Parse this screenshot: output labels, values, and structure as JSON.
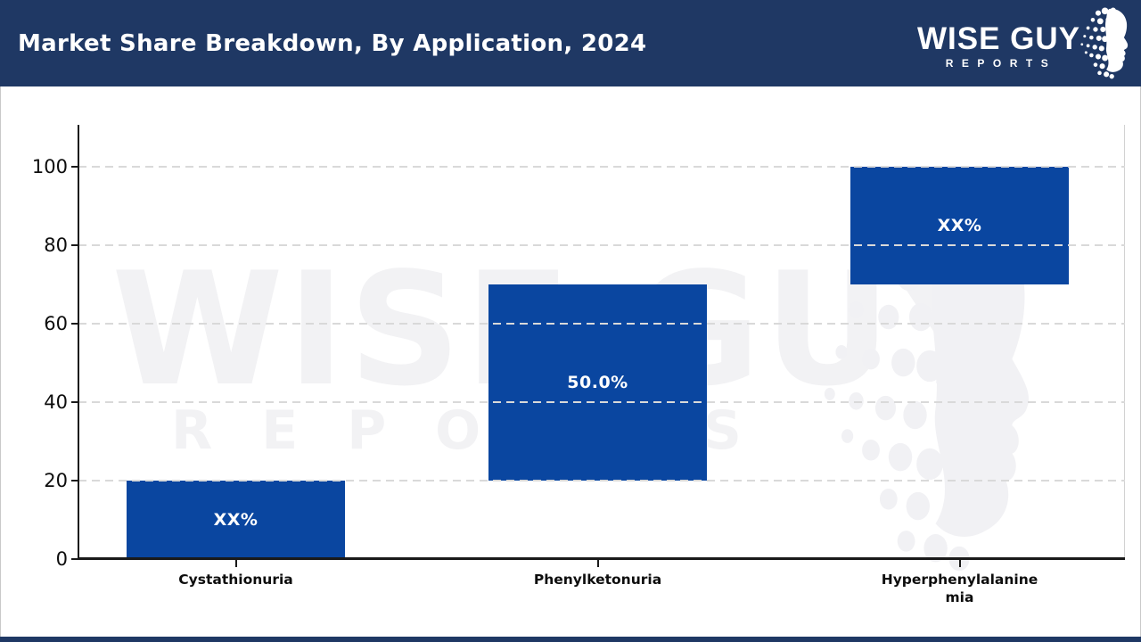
{
  "header": {
    "title": "Market Share Breakdown, By Application, 2024",
    "logo": {
      "wordmark": "WISE GUY",
      "subtitle": "REPORTS"
    }
  },
  "watermark": {
    "wordmark": "WISE GUY",
    "subtitle": "REPORTS"
  },
  "chart_data": {
    "type": "bar",
    "subtype": "waterfall",
    "title": "Market Share Breakdown, By Application, 2024",
    "categories": [
      "Cystathionuria",
      "Phenylketonuria",
      "Hyperphenylalanine\nmia"
    ],
    "segments": [
      {
        "start": 0,
        "end": 20,
        "label": "XX%"
      },
      {
        "start": 20,
        "end": 70,
        "label": "50.0%"
      },
      {
        "start": 70,
        "end": 100,
        "label": "XX%"
      }
    ],
    "yticks": [
      0,
      20,
      40,
      60,
      80,
      100
    ],
    "ylim": [
      0,
      110
    ],
    "xlabel": "",
    "ylabel": "",
    "grid": {
      "axis": "y",
      "style": "dashed"
    },
    "legend": null,
    "bar_color": "#0a46a0",
    "bar_label_color": "#ffffff"
  },
  "colors": {
    "header_bg": "#1f3864",
    "footer_bg": "#1f3864",
    "bar": "#0a46a0",
    "bar_label": "#ffffff",
    "grid": "#d9d9d9",
    "axis": "#1a1a1a",
    "watermark": "#f2f2f4",
    "page_border": "#c9c9c9"
  }
}
